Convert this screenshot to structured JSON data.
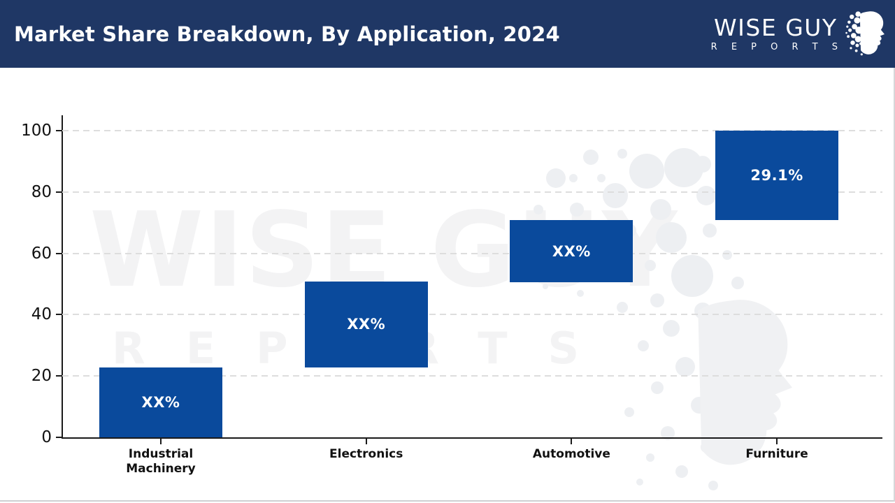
{
  "header": {
    "title": "Market Share Breakdown, By Application, 2024",
    "bg_color": "#1f3765",
    "logo": {
      "line1": "WISE GUY",
      "line2": "R E P O R T S"
    }
  },
  "watermark": {
    "line1": "WISE GUY",
    "line2": "REPORTS"
  },
  "chart_data": {
    "type": "bar",
    "subtype": "floating-segment-waterfall",
    "title": "Market Share Breakdown, By Application, 2024",
    "categories": [
      "Industrial Machinery",
      "Electronics",
      "Automotive",
      "Furniture"
    ],
    "segments": [
      {
        "category": "Industrial Machinery",
        "start": 0,
        "end": 22.8,
        "label": "XX%"
      },
      {
        "category": "Electronics",
        "start": 22.8,
        "end": 50.8,
        "label": "XX%"
      },
      {
        "category": "Automotive",
        "start": 50.6,
        "end": 70.8,
        "label": "XX%"
      },
      {
        "category": "Furniture",
        "start": 70.9,
        "end": 100,
        "label": "29.1%"
      }
    ],
    "xlabel": "",
    "ylabel": "",
    "ylim": [
      0,
      100
    ],
    "yticks": [
      0,
      20,
      40,
      60,
      80,
      100
    ],
    "grid": "horizontal-dashed",
    "legend": "none",
    "bar_color": "#0a4a9c",
    "bar_label_color": "#ffffff",
    "axis_color": "#1a1a1a"
  }
}
